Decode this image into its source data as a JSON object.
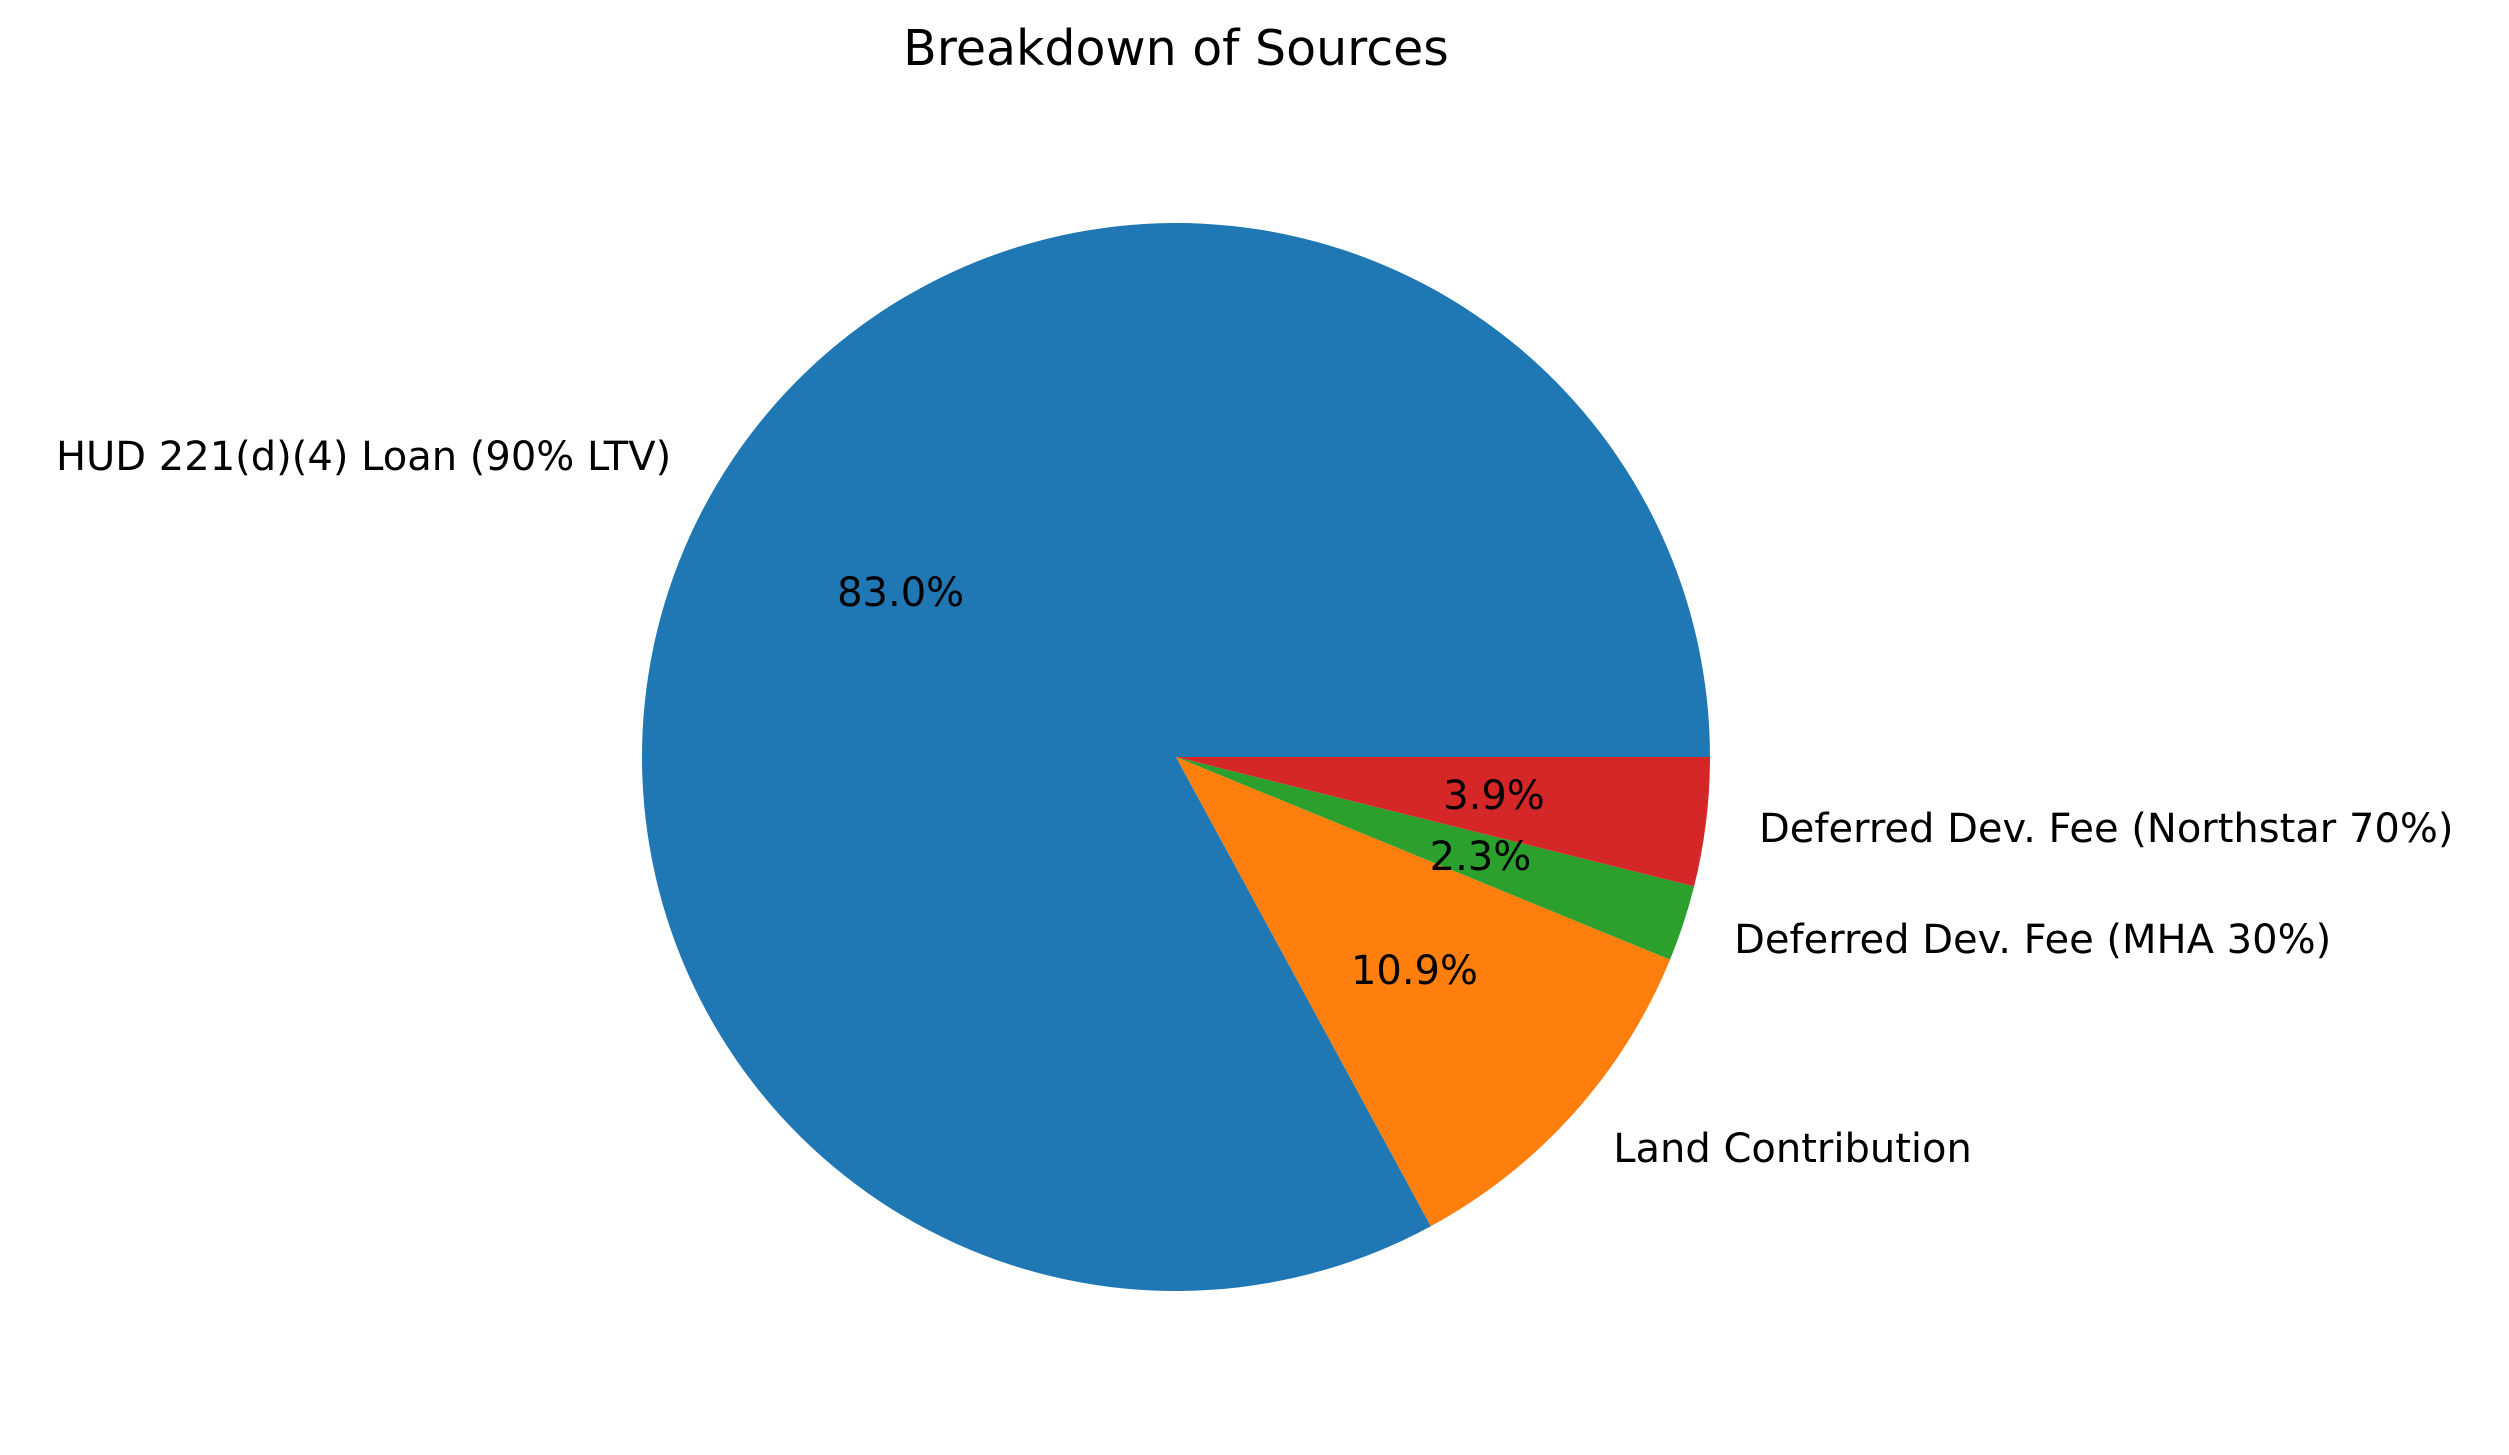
{
  "page": {
    "background_color": "#ffffff"
  },
  "chart_data": {
    "type": "pie",
    "title": "Breakdown of Sources",
    "legend_position": "none",
    "start_angle_deg": 0,
    "direction": "counterclockwise",
    "pct_distance": 0.6,
    "label_distance": 1.1,
    "slices": [
      {
        "label": "HUD 221(d)(4) Loan (90% LTV)",
        "value": 83.0,
        "pct_label": "83.0%",
        "color": "#1f77b4"
      },
      {
        "label": "Land Contribution",
        "value": 10.9,
        "pct_label": "10.9%",
        "color": "#ff7f0e"
      },
      {
        "label": "Deferred Dev. Fee (MHA 30%)",
        "value": 2.3,
        "pct_label": "2.3%",
        "color": "#2ca02c"
      },
      {
        "label": "Deferred Dev. Fee (Northstar 70%)",
        "value": 3.9,
        "pct_label": "3.9%",
        "color": "#d62728"
      }
    ]
  }
}
